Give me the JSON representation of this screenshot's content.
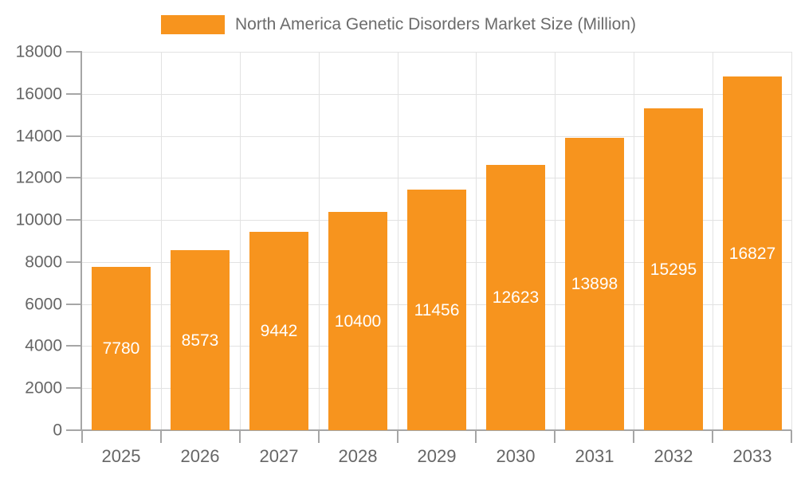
{
  "chart_data": {
    "type": "bar",
    "title": "North America Genetic Disorders Market Size (Million)",
    "categories": [
      "2025",
      "2026",
      "2027",
      "2028",
      "2029",
      "2030",
      "2031",
      "2032",
      "2033"
    ],
    "series": [
      {
        "name": "North America Genetic Disorders Market Size (Million)",
        "values": [
          7780,
          8573,
          9442,
          10400,
          11456,
          12623,
          13898,
          15295,
          16827
        ]
      }
    ],
    "value_labels": [
      "7780",
      "8573",
      "9442",
      "10400",
      "11456",
      "12623",
      "13898",
      "15295",
      "16827"
    ],
    "xlabel": "",
    "ylabel": "",
    "ylim": [
      0,
      18000
    ],
    "yticks": [
      0,
      2000,
      4000,
      6000,
      8000,
      10000,
      12000,
      14000,
      16000,
      18000
    ],
    "ytick_labels": [
      "0",
      "2000",
      "4000",
      "6000",
      "8000",
      "10000",
      "12000",
      "14000",
      "16000",
      "18000"
    ],
    "grid": "on",
    "legend_position": "top-center",
    "colors": {
      "bar": "#F7941E",
      "bar_value_text": "#ffffff",
      "axis_label": "#666666",
      "legend_text": "#6b6b6b",
      "gridline": "#e2e2e2",
      "axis_line": "#a6a6a6",
      "background": "#ffffff"
    }
  }
}
